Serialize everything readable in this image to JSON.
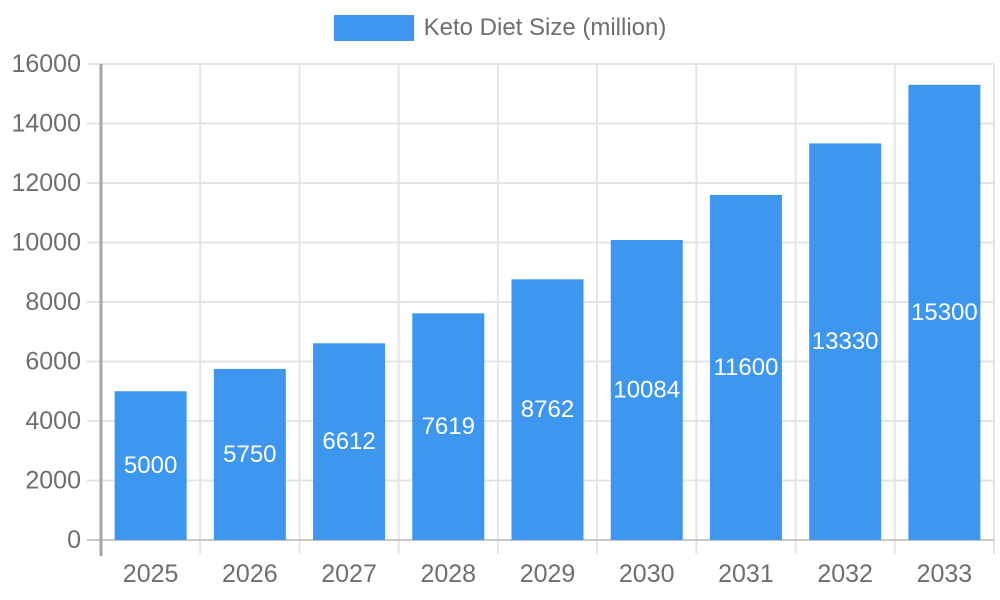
{
  "chart_data": {
    "type": "bar",
    "title": "Keto Diet Size (million)",
    "legend": {
      "position": "top",
      "entries": [
        "Keto Diet Size (million)"
      ]
    },
    "categories": [
      "2025",
      "2026",
      "2027",
      "2028",
      "2029",
      "2030",
      "2031",
      "2032",
      "2033"
    ],
    "values": [
      5000,
      5750,
      6612,
      7619,
      8762,
      10084,
      11600,
      13330,
      15300
    ],
    "xlabel": "",
    "ylabel": "",
    "ylim": [
      0,
      16000
    ],
    "ytick_step": 2000,
    "ytick_labels": [
      "0",
      "2000",
      "4000",
      "6000",
      "8000",
      "10000",
      "12000",
      "14000",
      "16000"
    ],
    "grid": true,
    "value_labels": "inside-center-white",
    "colors": {
      "bar": "#3e97ee",
      "value_label": "#ffffff",
      "axis_text": "#6e6e6e",
      "grid_line": "#e4e4e4",
      "y_axis_line": "#a5a5a5",
      "x_axis_line": "#c9c9c9"
    }
  }
}
